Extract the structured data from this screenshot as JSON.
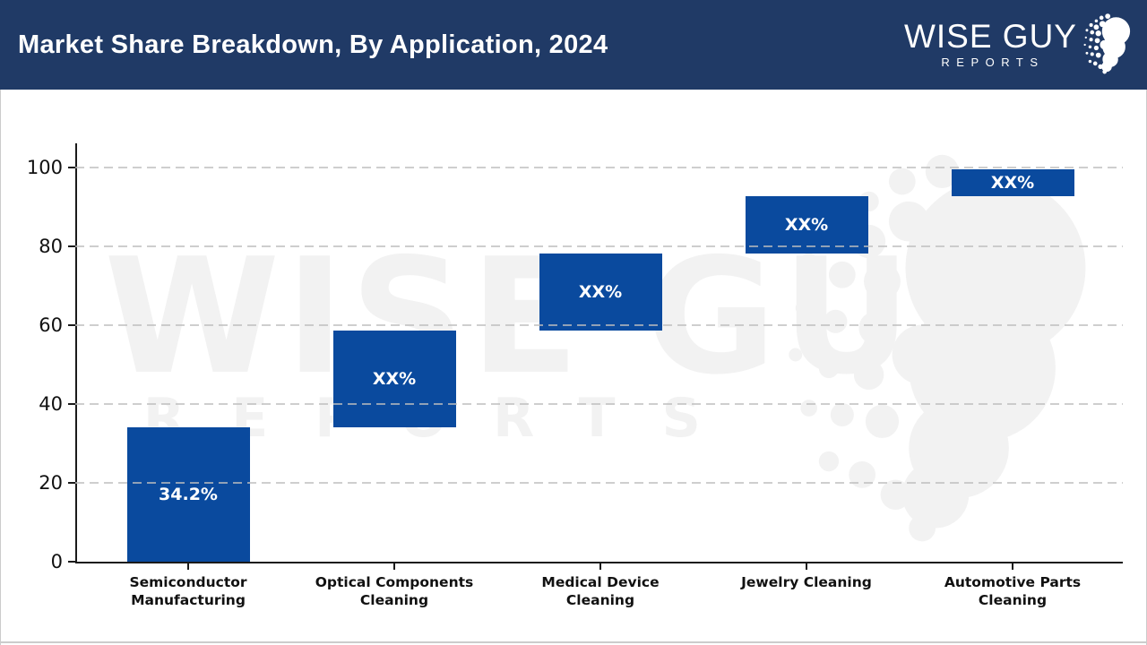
{
  "header": {
    "title": "Market Share Breakdown, By Application, 2024",
    "logo": {
      "brand": "WISE GUY",
      "sub": "REPORTS"
    }
  },
  "watermark": {
    "brand": "WISE GUY",
    "sub": "REPORTS"
  },
  "colors": {
    "header_bg": "#203a66",
    "bar_fill": "#0a4a9e",
    "bar_label": "#ffffff",
    "axis": "#1a1a1a",
    "gridline": "#d9d9d9",
    "watermark": "#f2f2f2",
    "page_bg": "#ffffff",
    "border": "#cccccc"
  },
  "chart_data": {
    "type": "bar",
    "variant": "floating-waterfall",
    "title": "Market Share Breakdown, By Application, 2024",
    "xlabel": "",
    "ylabel": "",
    "ylim": [
      0,
      100
    ],
    "yticks": [
      0,
      20,
      40,
      60,
      80,
      100
    ],
    "grid": "horizontal-dashed",
    "legend": "none",
    "categories": [
      "Semiconductor Manufacturing",
      "Optical Components Cleaning",
      "Medical Device Cleaning",
      "Jewelry Cleaning",
      "Automotive Parts Cleaning"
    ],
    "category_label_lines": [
      [
        "Semiconductor",
        "Manufacturing"
      ],
      [
        "Optical Components",
        "Cleaning"
      ],
      [
        "Medical Device",
        "Cleaning"
      ],
      [
        "Jewelry Cleaning"
      ],
      [
        "Automotive Parts",
        "Cleaning"
      ]
    ],
    "series": [
      {
        "name": "Market share (%)",
        "segments": [
          {
            "category": "Semiconductor Manufacturing",
            "start": 0,
            "end": 34.2,
            "value_label": "34.2%"
          },
          {
            "category": "Optical Components Cleaning",
            "start": 34.2,
            "end": 58.6,
            "value_label": "XX%"
          },
          {
            "category": "Medical Device Cleaning",
            "start": 58.6,
            "end": 78.2,
            "value_label": "XX%"
          },
          {
            "category": "Jewelry Cleaning",
            "start": 78.2,
            "end": 92.7,
            "value_label": "XX%"
          },
          {
            "category": "Automotive Parts Cleaning",
            "start": 92.7,
            "end": 99.6,
            "value_label": "XX%"
          }
        ]
      }
    ]
  }
}
